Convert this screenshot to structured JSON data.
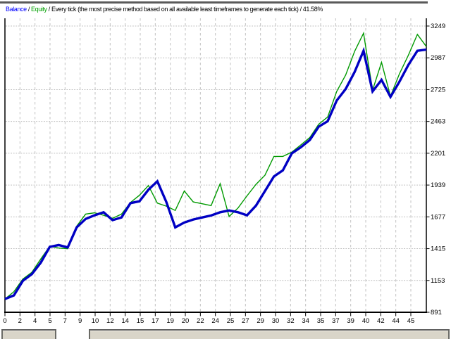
{
  "header": {
    "balance_label": "Balance",
    "separator": " / ",
    "equity_label": "Equity",
    "description": "Every tick (the most precise method based on all available least timeframes to generate each tick)",
    "percent": "41.58%"
  },
  "colors": {
    "balance_line": "#0000c3",
    "equity_line": "#009a00",
    "header_balance": "#0000ff",
    "header_equity": "#00a000",
    "grid": "#c2c2c2",
    "axis": "#000000",
    "chrome_fill": "#d9d5c9",
    "chrome_border": "#5f5f5f"
  },
  "chart_data": {
    "type": "line",
    "x_unit": "trade number",
    "x_tick_labels": [
      "0",
      "2",
      "4",
      "5",
      "7",
      "9",
      "10",
      "12",
      "14",
      "15",
      "17",
      "19",
      "20",
      "22",
      "24",
      "25",
      "27",
      "29",
      "30",
      "32",
      "34",
      "35",
      "37",
      "39",
      "40",
      "42",
      "44",
      "45"
    ],
    "y_tick_labels": [
      "3249",
      "2987",
      "2725",
      "2463",
      "2201",
      "1939",
      "1677",
      "1415",
      "1153",
      "891"
    ],
    "y_min": 891,
    "y_max": 3249,
    "y_step": 262,
    "grid": true,
    "legend_position": "header-top-left",
    "series": [
      {
        "name": "Equity",
        "color": "#009a00",
        "stroke_width": 1.4,
        "values": [
          1000,
          1060,
          1165,
          1220,
          1330,
          1435,
          1420,
          1415,
          1600,
          1700,
          1710,
          1690,
          1665,
          1700,
          1795,
          1855,
          1935,
          1790,
          1765,
          1730,
          1890,
          1800,
          1785,
          1770,
          1950,
          1680,
          1750,
          1850,
          1945,
          2020,
          2175,
          2175,
          2210,
          2270,
          2330,
          2440,
          2500,
          2710,
          2845,
          3040,
          3190,
          2720,
          2950,
          2670,
          2855,
          3010,
          3180,
          3080
        ]
      },
      {
        "name": "Balance",
        "color": "#0000c3",
        "stroke_width": 3.4,
        "values": [
          1000,
          1030,
          1150,
          1205,
          1300,
          1430,
          1445,
          1425,
          1590,
          1660,
          1690,
          1715,
          1650,
          1672,
          1790,
          1805,
          1900,
          1970,
          1800,
          1590,
          1630,
          1655,
          1672,
          1688,
          1715,
          1730,
          1715,
          1690,
          1770,
          1890,
          2010,
          2060,
          2200,
          2250,
          2310,
          2420,
          2465,
          2635,
          2730,
          2870,
          3045,
          2710,
          2805,
          2665,
          2790,
          2930,
          3045,
          3055
        ]
      }
    ]
  }
}
